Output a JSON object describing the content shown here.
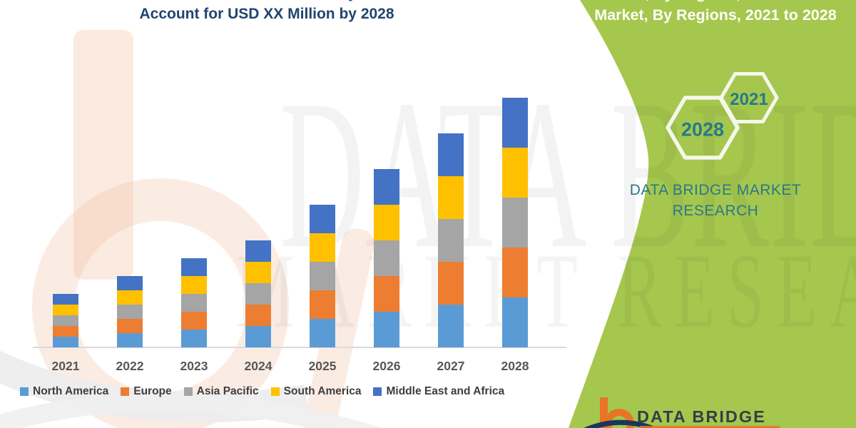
{
  "header": {
    "title_line2": "Account for USD XX Million by 2028"
  },
  "side_panel": {
    "background_color": "#a5c74e",
    "title_line2": "Market, By Regions, 2021 to 2028",
    "hexagons": [
      {
        "label": "2028"
      },
      {
        "label": "2021"
      }
    ],
    "brand_line1": "DATA BRIDGE MARKET",
    "brand_line2": "RESEARCH",
    "brand_color": "#2a7889"
  },
  "footer_logo": {
    "brand": "DATA BRIDGE",
    "accent_color": "#e87424"
  },
  "watermark": {
    "line1": "DATA BRIDGE",
    "line2": "MARKET RESEARCH"
  },
  "chart_data": {
    "type": "bar",
    "stacked": true,
    "title": "Account for USD XX Million by 2028",
    "xlabel": "",
    "ylabel": "",
    "grid": false,
    "y_axis_shown": false,
    "value_note": "no y-axis shown; values are relative estimated units (1 unit ≈ 1 px)",
    "legend_position": "bottom",
    "categories": [
      "2021",
      "2022",
      "2023",
      "2024",
      "2025",
      "2026",
      "2027",
      "2028"
    ],
    "series": [
      {
        "name": "North America",
        "color": "#5b9bd5",
        "values": [
          15,
          20,
          25,
          30,
          40,
          50,
          60,
          70
        ]
      },
      {
        "name": "Europe",
        "color": "#ed7d31",
        "values": [
          15,
          20,
          25,
          30,
          40,
          50,
          60,
          70
        ]
      },
      {
        "name": "Asia Pacific",
        "color": "#a5a5a5",
        "values": [
          15,
          20,
          25,
          30,
          40,
          50,
          60,
          70
        ]
      },
      {
        "name": "South America",
        "color": "#ffc000",
        "values": [
          15,
          20,
          25,
          30,
          40,
          50,
          60,
          70
        ]
      },
      {
        "name": "Middle East and Africa",
        "color": "#4472c4",
        "values": [
          15,
          20,
          25,
          30,
          40,
          50,
          60,
          70
        ]
      }
    ],
    "totals": [
      75,
      100,
      125,
      150,
      200,
      250,
      300,
      350
    ]
  }
}
